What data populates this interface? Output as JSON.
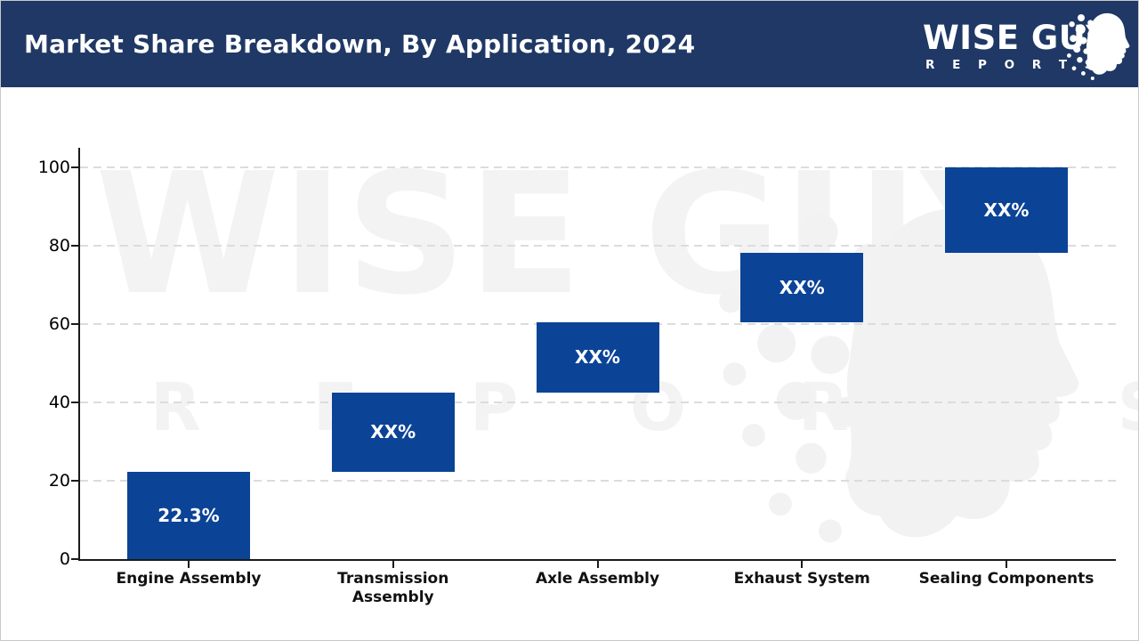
{
  "header": {
    "title": "Market Share Breakdown, By Application, 2024",
    "bg_color": "#1f3865",
    "logo": {
      "line1": "WISE GUY",
      "line2": "R E P O R T S"
    }
  },
  "watermark": {
    "line1": "WISE GUY",
    "line2": "R E P O R T S"
  },
  "chart_data": {
    "type": "bar",
    "subtype": "waterfall",
    "title": "Market Share Breakdown, By Application, 2024",
    "xlabel": "",
    "ylabel": "",
    "ylim": [
      0,
      105
    ],
    "yticks": [
      0,
      20,
      40,
      60,
      80,
      100
    ],
    "grid": "horizontal dashed",
    "legend": "none",
    "bar_color": "#0b4397",
    "categories": [
      "Engine Assembly",
      "Transmission Assembly",
      "Axle Assembly",
      "Exhaust System",
      "Sealing Components"
    ],
    "segments": [
      {
        "category": "Engine Assembly",
        "category_lines": [
          "Engine Assembly"
        ],
        "start": 0,
        "end": 22.3,
        "label": "22.3%"
      },
      {
        "category": "Transmission Assembly",
        "category_lines": [
          "Transmission",
          "Assembly"
        ],
        "start": 22.3,
        "end": 42.5,
        "label": "XX%"
      },
      {
        "category": "Axle Assembly",
        "category_lines": [
          "Axle Assembly"
        ],
        "start": 42.5,
        "end": 60.5,
        "label": "XX%"
      },
      {
        "category": "Exhaust System",
        "category_lines": [
          "Exhaust System"
        ],
        "start": 60.5,
        "end": 78.2,
        "label": "XX%"
      },
      {
        "category": "Sealing Components",
        "category_lines": [
          "Sealing Components"
        ],
        "start": 78.2,
        "end": 100,
        "label": "XX%"
      }
    ]
  }
}
